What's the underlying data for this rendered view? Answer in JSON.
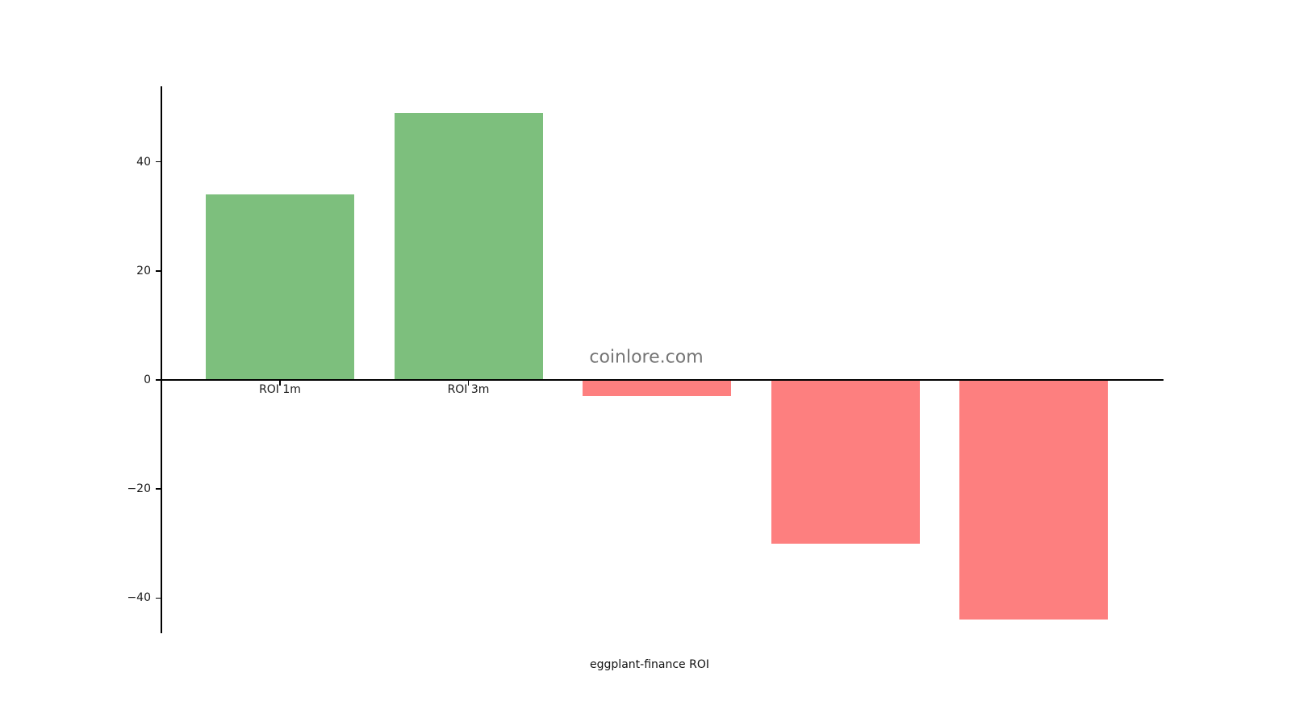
{
  "watermark": "coinlore.com",
  "footer_title": "eggplant-finance ROI",
  "colors": {
    "positive_bar": "#7dbf7d",
    "negative_bar": "#fd7f7f",
    "axis": "#000000",
    "watermark_text": "#757575",
    "background": "#ffffff"
  },
  "chart_data": {
    "type": "bar",
    "title": "eggplant-finance ROI",
    "categories": [
      "ROI 1m",
      "ROI 3m",
      "",
      "",
      ""
    ],
    "values": [
      34,
      49,
      -3,
      -30,
      -44
    ],
    "series": [
      {
        "name": "ROI",
        "values": [
          34,
          49,
          -3,
          -30,
          -44
        ]
      }
    ],
    "yticks": [
      40,
      20,
      0,
      -20,
      -40
    ],
    "ytick_labels": [
      "40",
      "20",
      "0",
      "−20",
      "−40"
    ],
    "ylim": [
      -46.5,
      54
    ],
    "xlabel": "eggplant-finance ROI",
    "ylabel": "",
    "grid": false,
    "legend": "none",
    "bar_color_positive": "#7dbf7d",
    "bar_color_negative": "#fd7f7f",
    "watermark": "coinlore.com",
    "note_visible_category_labels": [
      "ROI 1m",
      "ROI 3m"
    ]
  }
}
